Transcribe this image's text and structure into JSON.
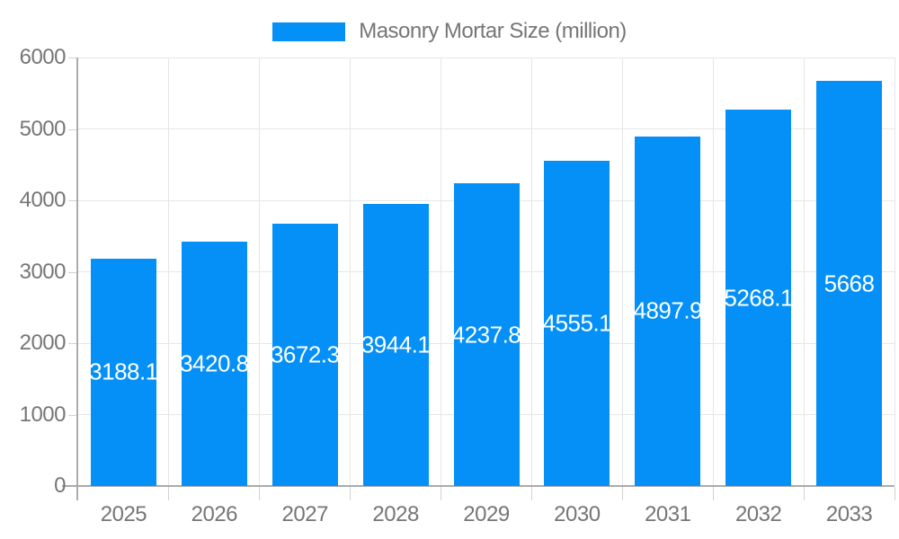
{
  "legend": {
    "label": "Masonry Mortar Size (million)"
  },
  "chart_data": {
    "type": "bar",
    "title": "Masonry Mortar Size (million)",
    "categories": [
      "2025",
      "2026",
      "2027",
      "2028",
      "2029",
      "2030",
      "2031",
      "2032",
      "2033"
    ],
    "series": [
      {
        "name": "Masonry Mortar Size (million)",
        "values": [
          3188.1,
          3420.8,
          3672.3,
          3944.1,
          4237.8,
          4555.1,
          4897.9,
          5268.1,
          5668
        ]
      }
    ],
    "bar_value_labels": [
      "3188.1",
      "3420.8",
      "3672.3",
      "3944.1",
      "4237.8",
      "4555.1",
      "4897.9",
      "5268.1",
      "5668"
    ],
    "xlabel": "",
    "ylabel": "",
    "ylim": [
      0,
      6000
    ],
    "y_ticks": [
      0,
      1000,
      2000,
      3000,
      4000,
      5000,
      6000
    ],
    "grid": true,
    "legend_position": "top",
    "colors": {
      "bar": "#0590f8",
      "bar_label_text": "#ffffff",
      "axis_text": "#767676",
      "gridline": "#e6e6e6",
      "axis_line": "#ababab",
      "tick": "#d2d2d2"
    }
  }
}
